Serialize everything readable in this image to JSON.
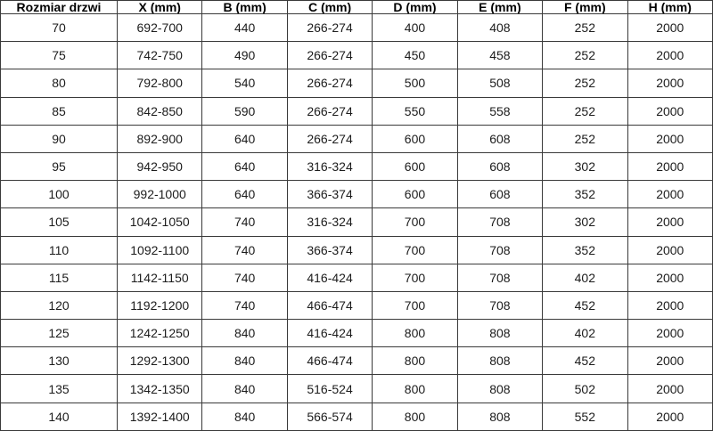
{
  "colors": {
    "border-color": "#3a3a3a",
    "text-color": "#1c1c1c",
    "header-text-color": "#000000",
    "bg-color": "#ffffff"
  },
  "chart_data": {
    "type": "table",
    "columns": [
      "Rozmiar drzwi",
      "X (mm)",
      "B (mm)",
      "C (mm)",
      "D (mm)",
      "E (mm)",
      "F (mm)",
      "H (mm)"
    ],
    "rows": [
      [
        "70",
        "692-700",
        "440",
        "266-274",
        "400",
        "408",
        "252",
        "2000"
      ],
      [
        "75",
        "742-750",
        "490",
        "266-274",
        "450",
        "458",
        "252",
        "2000"
      ],
      [
        "80",
        "792-800",
        "540",
        "266-274",
        "500",
        "508",
        "252",
        "2000"
      ],
      [
        "85",
        "842-850",
        "590",
        "266-274",
        "550",
        "558",
        "252",
        "2000"
      ],
      [
        "90",
        "892-900",
        "640",
        "266-274",
        "600",
        "608",
        "252",
        "2000"
      ],
      [
        "95",
        "942-950",
        "640",
        "316-324",
        "600",
        "608",
        "302",
        "2000"
      ],
      [
        "100",
        "992-1000",
        "640",
        "366-374",
        "600",
        "608",
        "352",
        "2000"
      ],
      [
        "105",
        "1042-1050",
        "740",
        "316-324",
        "700",
        "708",
        "302",
        "2000"
      ],
      [
        "110",
        "1092-1100",
        "740",
        "366-374",
        "700",
        "708",
        "352",
        "2000"
      ],
      [
        "115",
        "1142-1150",
        "740",
        "416-424",
        "700",
        "708",
        "402",
        "2000"
      ],
      [
        "120",
        "1192-1200",
        "740",
        "466-474",
        "700",
        "708",
        "452",
        "2000"
      ],
      [
        "125",
        "1242-1250",
        "840",
        "416-424",
        "800",
        "808",
        "402",
        "2000"
      ],
      [
        "130",
        "1292-1300",
        "840",
        "466-474",
        "800",
        "808",
        "452",
        "2000"
      ],
      [
        "135",
        "1342-1350",
        "840",
        "516-524",
        "800",
        "808",
        "502",
        "2000"
      ],
      [
        "140",
        "1392-1400",
        "840",
        "566-574",
        "800",
        "808",
        "552",
        "2000"
      ]
    ]
  }
}
